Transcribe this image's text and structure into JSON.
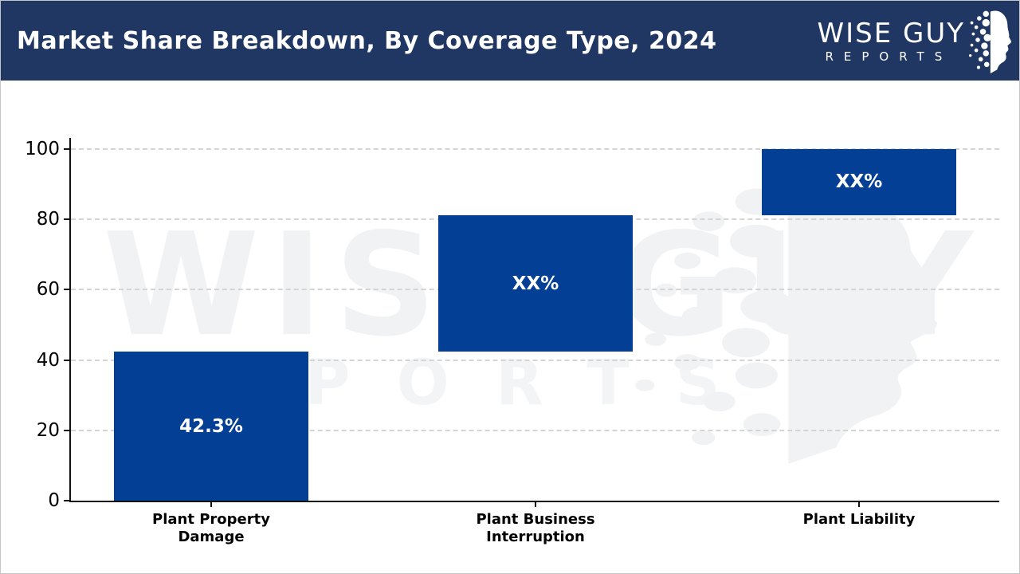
{
  "header": {
    "title": "Market Share Breakdown, By Coverage Type, 2024",
    "bg_color": "#203763",
    "logo": {
      "name": "WISE GUY",
      "sub": "REPORTS"
    }
  },
  "watermark": {
    "name": "WISE GUY",
    "sub": "REPORTS"
  },
  "chart_data": {
    "type": "bar",
    "subtype": "stacked-waterfall-percent",
    "title": "Market Share Breakdown, By Coverage Type, 2024",
    "categories": [
      "Plant Property Damage",
      "Plant Business Interruption",
      "Plant Liability"
    ],
    "category_lines": [
      [
        "Plant Property",
        "Damage"
      ],
      [
        "Plant Business",
        "Interruption"
      ],
      [
        "Plant Liability"
      ]
    ],
    "values": [
      42.3,
      38.9,
      18.8
    ],
    "segments": [
      {
        "category": "Plant Property Damage",
        "start": 0,
        "end": 42.3,
        "label": "42.3%"
      },
      {
        "category": "Plant Business Interruption",
        "start": 42.3,
        "end": 81.2,
        "label": "XX%"
      },
      {
        "category": "Plant Liability",
        "start": 81.2,
        "end": 100,
        "label": "XX%"
      }
    ],
    "bar_labels": [
      "42.3%",
      "XX%",
      "XX%"
    ],
    "xlabel": "",
    "ylabel": "",
    "ylim": [
      0,
      103
    ],
    "yticks": [
      0,
      20,
      40,
      60,
      80,
      100
    ],
    "grid": "horizontal-dashed",
    "legend": "none",
    "bar_color": "#043F96",
    "bar_label_color": "#FFFFFF",
    "axis_color": "#111111",
    "grid_color": "#D4D4D4"
  }
}
